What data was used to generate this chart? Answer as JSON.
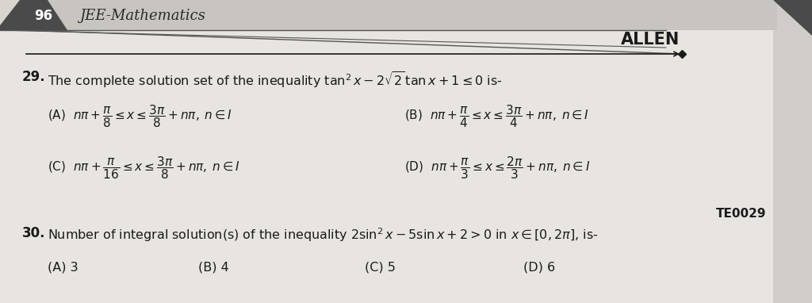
{
  "background_color": "#e8e5e0",
  "header_bg_color": "#c8c5c0",
  "header_dark_color": "#4a4a4a",
  "header_text": "JEE-Mathematics",
  "header_number": "96",
  "allen_text": "ALLEN",
  "allen_color": "#1a1a1a",
  "q29_number": "29.",
  "te0029": "TE0029",
  "q30_number": "30.",
  "q30_options": [
    "(A) 3",
    "(B) 4",
    "(C) 5",
    "(D) 6"
  ],
  "text_color": "#1a1a1a",
  "right_panel_color": "#d0cdc8",
  "figwidth": 10.24,
  "figheight": 3.82,
  "dpi": 100
}
